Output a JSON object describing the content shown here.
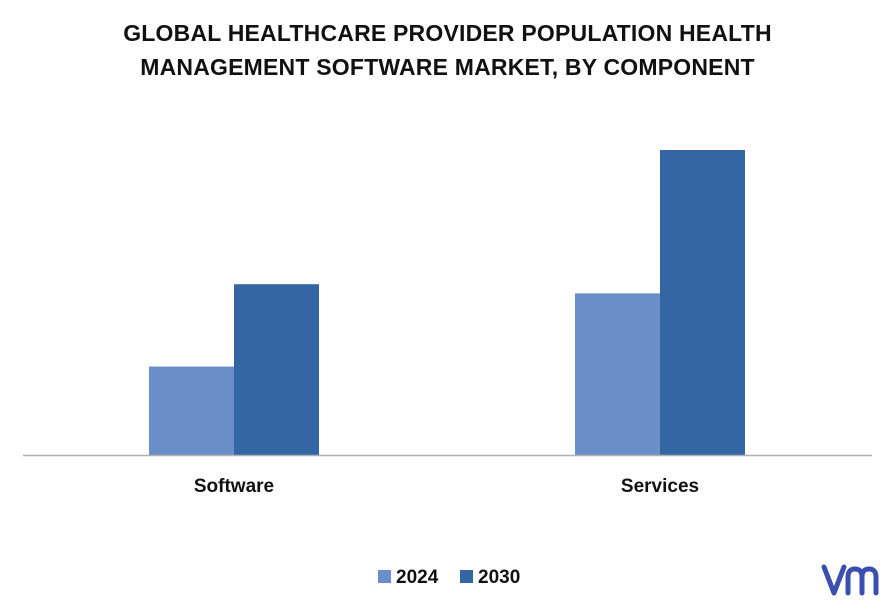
{
  "chart_data": {
    "type": "bar",
    "title_line1": "GLOBAL HEALTHCARE PROVIDER POPULATION HEALTH",
    "title_line2": "MANAGEMENT SOFTWARE MARKET, BY COMPONENT",
    "categories": [
      "Software",
      "Services"
    ],
    "series": [
      {
        "name": "2024",
        "values": [
          29,
          53
        ],
        "color": "#6a8fc8"
      },
      {
        "name": "2030",
        "values": [
          56,
          100
        ],
        "color": "#3566a4"
      }
    ],
    "ylim": [
      0,
      110
    ],
    "grid": false,
    "legend": "bottom-center",
    "logo": "vmr"
  }
}
